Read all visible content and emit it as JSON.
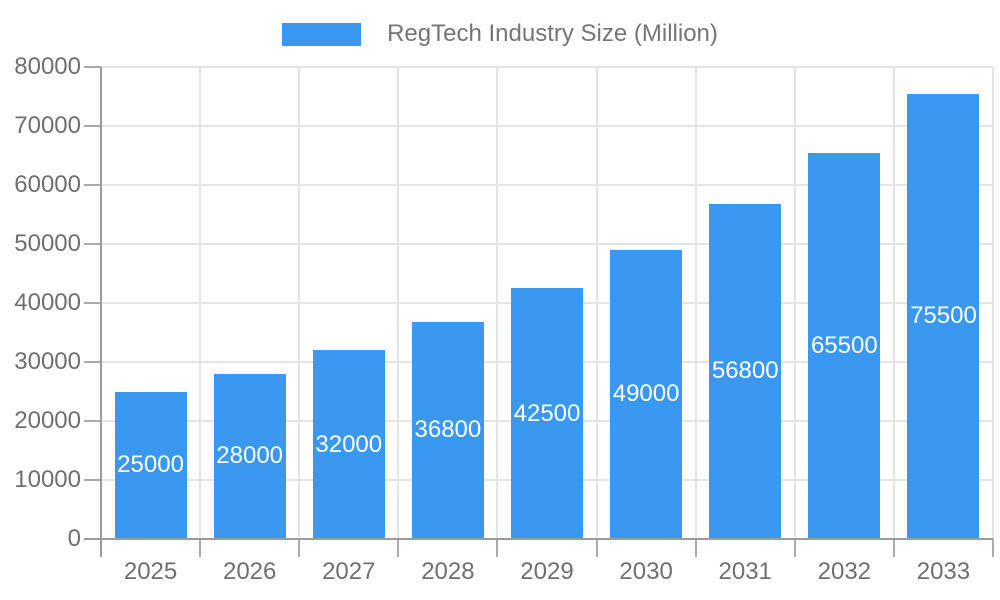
{
  "chart_data": {
    "type": "bar",
    "title": "RegTech Industry Size (Million)",
    "categories": [
      "2025",
      "2026",
      "2027",
      "2028",
      "2029",
      "2030",
      "2031",
      "2032",
      "2033"
    ],
    "series": [
      {
        "name": "RegTech Industry Size (Million)",
        "values": [
          25000,
          28000,
          32000,
          36800,
          42500,
          49000,
          56800,
          65500,
          75500
        ]
      }
    ],
    "bar_value_labels": [
      "25000",
      "28000",
      "32000",
      "36800",
      "42500",
      "49000",
      "56800",
      "65500",
      "75500"
    ],
    "ytick_labels": [
      "0",
      "10000",
      "20000",
      "30000",
      "40000",
      "50000",
      "60000",
      "70000",
      "80000"
    ],
    "xlabel": "",
    "ylabel": "",
    "ylim": [
      0,
      80000
    ],
    "ytick_step": 10000,
    "grid": true,
    "legend_position": "top",
    "colors": {
      "bar": "#3B98F1",
      "bar_value_text": "#FFFFFF",
      "axis_line": "#9B9B9B",
      "gridline": "#E4E4E4",
      "tick": "#ABABAB",
      "axis_text": "#6F6F6F",
      "legend_text": "#757575",
      "background": "#FFFFFF"
    }
  }
}
